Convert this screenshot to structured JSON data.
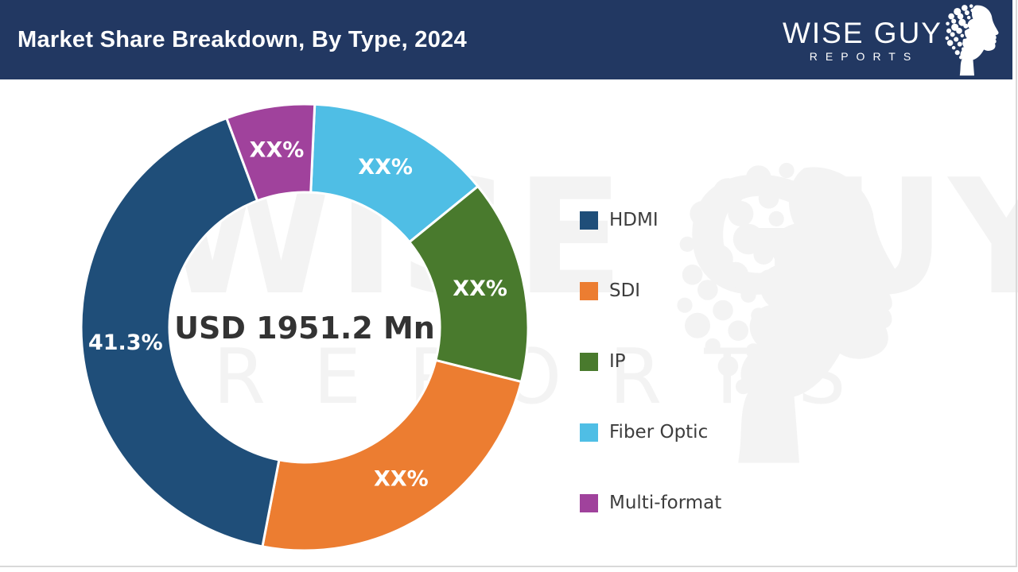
{
  "header": {
    "title": "Market Share Breakdown, By Type, 2024"
  },
  "brand": {
    "name": "WISE GUY",
    "sub": "REPORTS"
  },
  "watermark": {
    "name": "WISE GUY",
    "sub": "REPORTS"
  },
  "chart_data": {
    "type": "donut",
    "title": "Market Share Breakdown, By Type, 2024",
    "center_label": "USD 1951.2 Mn",
    "value_unit": "percent of market share",
    "start_angle_deg": 2.6,
    "legend_position": "right",
    "slices": [
      {
        "name": "Fiber Optic",
        "value_pct": 13.4,
        "label": "XX%",
        "color": "#4FBEE5"
      },
      {
        "name": "IP",
        "value_pct": 14.8,
        "label": "XX%",
        "color": "#497A2D"
      },
      {
        "name": "SDI",
        "value_pct": 24.1,
        "label": "XX%",
        "color": "#EC7D31"
      },
      {
        "name": "HDMI",
        "value_pct": 41.3,
        "label": "41.3%",
        "color": "#1F4E79"
      },
      {
        "name": "Multi-format",
        "value_pct": 6.4,
        "label": "XX%",
        "color": "#A0429C"
      }
    ],
    "legend_items": [
      {
        "label": "HDMI",
        "color": "#1F4E79"
      },
      {
        "label": "SDI",
        "color": "#EC7D31"
      },
      {
        "label": "IP",
        "color": "#497A2D"
      },
      {
        "label": "Fiber Optic",
        "color": "#4FBEE5"
      },
      {
        "label": "Multi-format",
        "color": "#A0429C"
      }
    ]
  }
}
